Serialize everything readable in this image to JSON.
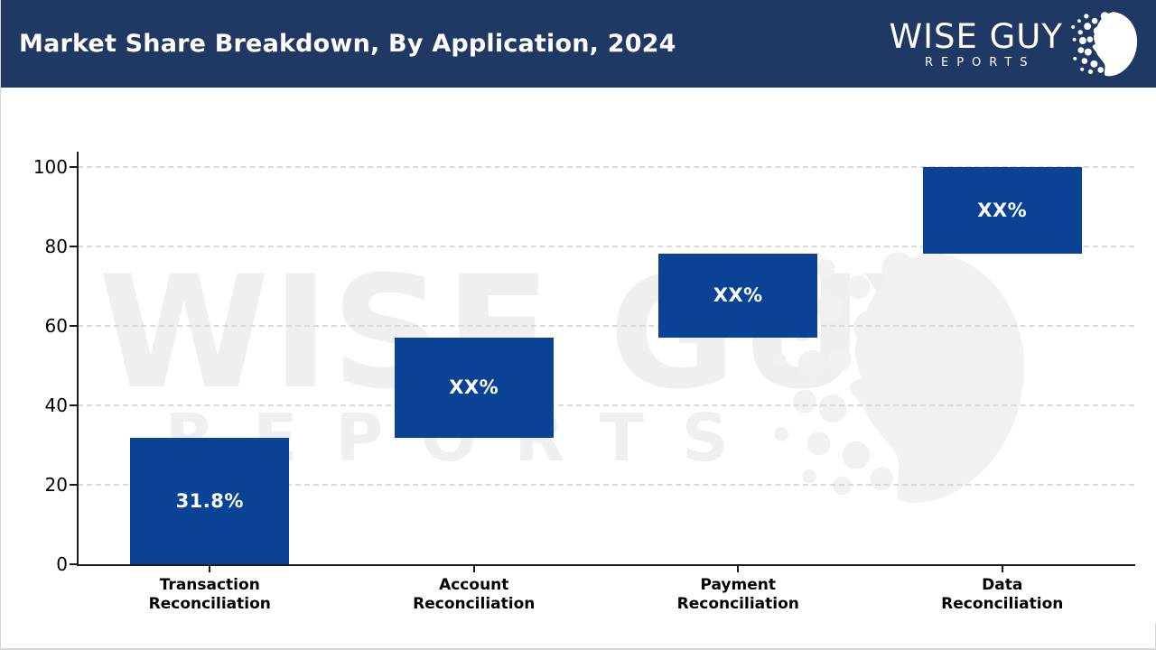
{
  "header": {
    "title": "Market Share Breakdown, By Application, 2024",
    "logo": {
      "line1": "WISE GUY",
      "line2": "REPORTS"
    }
  },
  "watermark": {
    "line1": "WISE GUY",
    "line2": "REPORTS"
  },
  "colors": {
    "header_bg": "#1f3864",
    "bar": "#0a4296",
    "grid": "#d9d9d9",
    "bar_label": "#ffffff",
    "watermark": "#efeff2"
  },
  "chart_data": {
    "type": "bar",
    "subtype": "waterfall",
    "title": "Market Share Breakdown, By Application, 2024",
    "categories": [
      [
        "Transaction",
        "Reconciliation"
      ],
      [
        "Account",
        "Reconciliation"
      ],
      [
        "Payment",
        "Reconciliation"
      ],
      [
        "Data",
        "Reconciliation"
      ]
    ],
    "series": [
      {
        "name": "Market Share",
        "segments": [
          {
            "start": 0,
            "end": 31.8,
            "label": "31.8%"
          },
          {
            "start": 31.8,
            "end": 57.1,
            "label": "XX%"
          },
          {
            "start": 57.1,
            "end": 78.2,
            "label": "XX%"
          },
          {
            "start": 78.2,
            "end": 100,
            "label": "XX%"
          }
        ]
      }
    ],
    "xlabel": "",
    "ylabel": "",
    "ylim": [
      0,
      104
    ],
    "yticks": [
      0,
      20,
      40,
      60,
      80,
      100
    ],
    "grid": "horizontal-dashed",
    "legend": false
  }
}
